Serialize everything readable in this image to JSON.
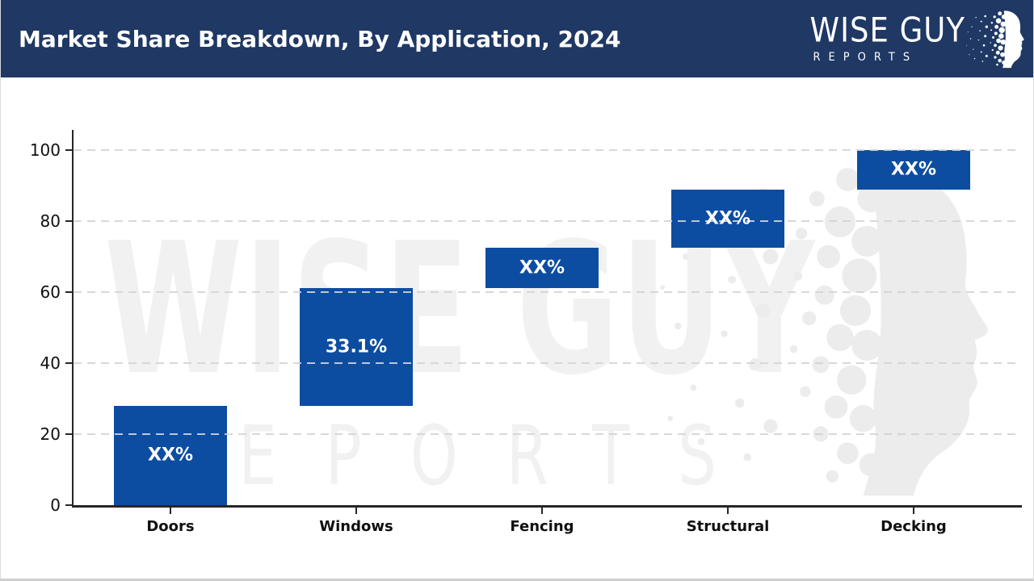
{
  "header": {
    "title": "Market Share Breakdown, By Application, 2024",
    "logo": {
      "wordmark": "WISE GUY",
      "subtitle": "REPORTS",
      "icon": "face-profile-dots-icon"
    }
  },
  "watermark": {
    "line1": "WISE GUY",
    "line2": "REPORTS",
    "icon": "face-profile-dots-icon"
  },
  "colors": {
    "header_bg": "#1f3864",
    "bar": "#0c4da1",
    "grid": "#d4d4d4",
    "axis": "#262626",
    "watermark": "#f1f1f1",
    "bar_label": "#ffffff",
    "title_text": "#ffffff"
  },
  "chart_data": {
    "type": "bar",
    "variant": "waterfall",
    "title": "",
    "xlabel": "",
    "ylabel": "",
    "legend": "none",
    "grid": "dashed-horizontal",
    "categories": [
      "Doors",
      "Windows",
      "Fencing",
      "Structural",
      "Decking"
    ],
    "segments": [
      {
        "category": "Doors",
        "start": 0,
        "end": 28,
        "label": "XX%"
      },
      {
        "category": "Windows",
        "start": 28,
        "end": 61.1,
        "label": "33.1%"
      },
      {
        "category": "Fencing",
        "start": 61.1,
        "end": 72.6,
        "label": "XX%"
      },
      {
        "category": "Structural",
        "start": 72.6,
        "end": 88.9,
        "label": "XX%"
      },
      {
        "category": "Decking",
        "start": 88.9,
        "end": 100,
        "label": "XX%"
      }
    ],
    "yticks": [
      0,
      20,
      40,
      60,
      80,
      100
    ],
    "ylim": [
      0,
      106
    ]
  }
}
